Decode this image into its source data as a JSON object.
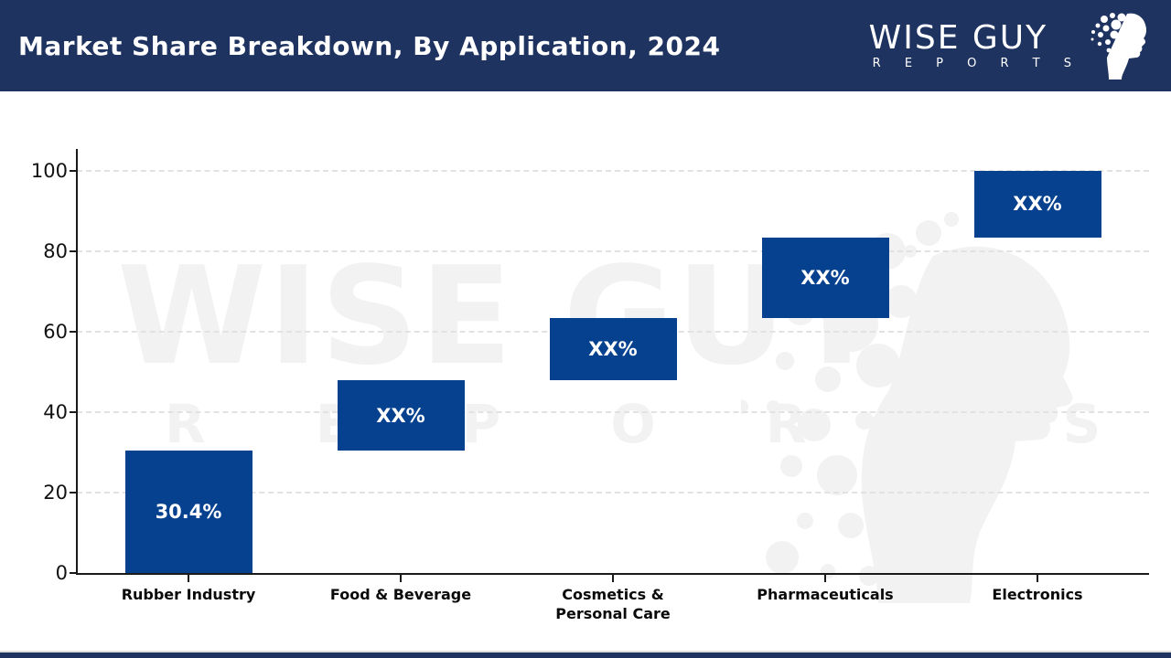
{
  "header": {
    "title": "Market Share Breakdown, By Application, 2024",
    "background_color": "#1f3361",
    "logo": {
      "wordmark": "WISE GUY",
      "subtext": "R E P O R T S"
    }
  },
  "watermark": {
    "line1": "WISE GUY",
    "line2": "R E P O R T S"
  },
  "chart_data": {
    "type": "bar",
    "subtype": "waterfall",
    "title": "Market Share Breakdown, By Application, 2024",
    "xlabel": "",
    "ylabel": "",
    "categories": [
      "Rubber Industry",
      "Food & Beverage",
      "Cosmetics &\nPersonal Care",
      "Pharmaceuticals",
      "Electronics"
    ],
    "series": [
      {
        "name": "Market share (%)",
        "segment_start": [
          0,
          30.4,
          48,
          63.5,
          83.5
        ],
        "segment_end": [
          30.4,
          48,
          63.5,
          83.5,
          100
        ]
      }
    ],
    "bar_labels": [
      "30.4%",
      "XX%",
      "XX%",
      "XX%",
      "XX%"
    ],
    "yticks": [
      0,
      20,
      40,
      60,
      80,
      100
    ],
    "ylim": [
      0,
      100
    ],
    "bar_color": "#06418f",
    "grid": "horizontal dashed",
    "gridline_color": "#e2e2e2",
    "legend": "none"
  }
}
